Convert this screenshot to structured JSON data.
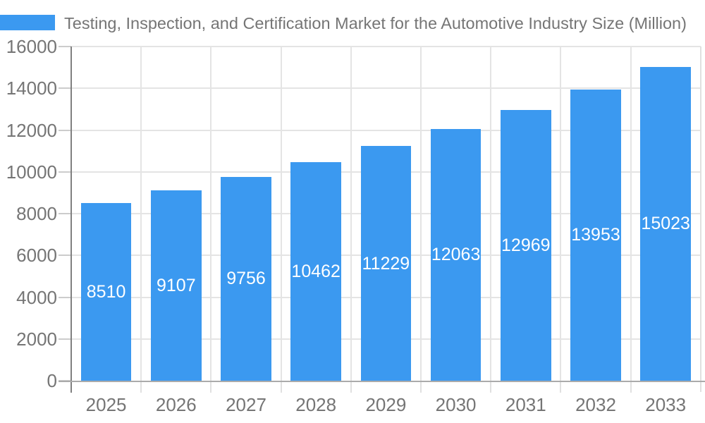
{
  "chart_data": {
    "type": "bar",
    "title": "Testing, Inspection, and Certification Market for the Automotive Industry Size (Million)",
    "legend": {
      "position": "top-left",
      "label": "Testing, Inspection, and Certification Market for the Automotive Industry Size (Million)"
    },
    "categories": [
      "2025",
      "2026",
      "2027",
      "2028",
      "2029",
      "2030",
      "2031",
      "2032",
      "2033"
    ],
    "values": [
      8510,
      9107,
      9756,
      10462,
      11229,
      12063,
      12969,
      13953,
      15023
    ],
    "xlabel": "",
    "ylabel": "",
    "ylim": [
      0,
      16000
    ],
    "yticks": [
      0,
      2000,
      4000,
      6000,
      8000,
      10000,
      12000,
      14000,
      16000
    ],
    "grid": true,
    "bar_label_position": "inside-middle",
    "colors": {
      "bar": "#3b99f0",
      "bar_label": "#ffffff",
      "axis_text": "#757575",
      "title_text": "#757575",
      "gridline": "#e4e4e4",
      "y_tick": "#cccccc",
      "x_tick_minor": "#e0e0e0",
      "axis_line_y": "#808080",
      "axis_line_x": "#ababab",
      "background": "#ffffff"
    }
  }
}
